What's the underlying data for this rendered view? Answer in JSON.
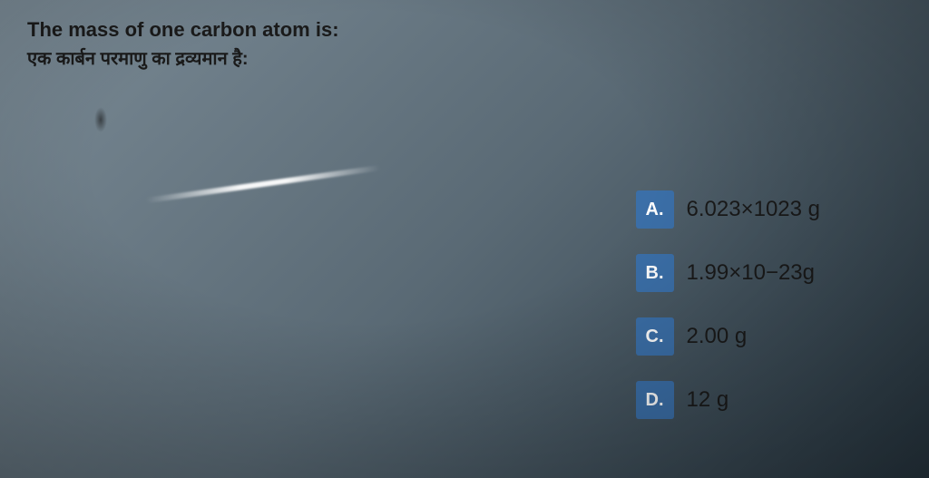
{
  "question": {
    "en": "The mass of one carbon atom is:",
    "hi": "एक कार्बन परमाणु का द्रव्यमान है:"
  },
  "options": [
    {
      "letter": "A.",
      "text": "6.023×1023 g"
    },
    {
      "letter": "B.",
      "text": "1.99×10−23g"
    },
    {
      "letter": "C.",
      "text": "2.00 g"
    },
    {
      "letter": "D.",
      "text": "12 g"
    }
  ],
  "style": {
    "badge_bg": "#3b6fa8",
    "badge_fg": "#ffffff",
    "text_color": "#1a1a1a",
    "question_fontsize": 22,
    "option_fontsize": 24
  }
}
